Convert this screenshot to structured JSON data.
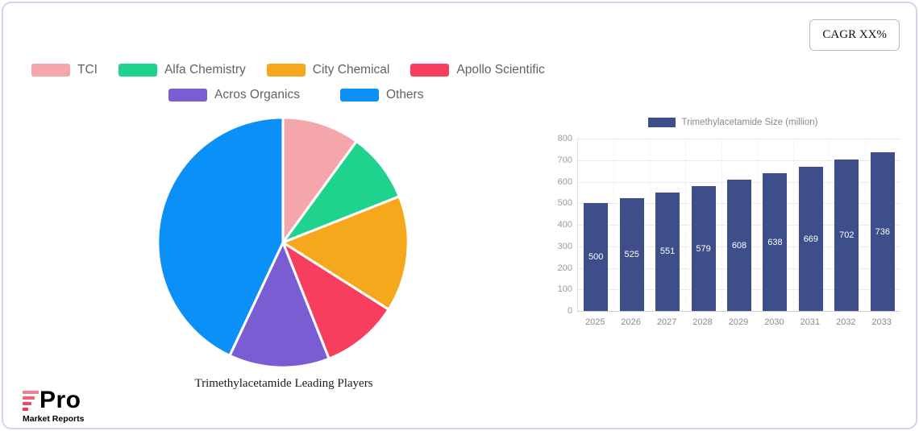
{
  "badge": {
    "label": "CAGR XX%"
  },
  "legend": {
    "items": [
      {
        "label": "TCI",
        "color": "#f4a6ab"
      },
      {
        "label": "Alfa Chemistry",
        "color": "#1fd38e"
      },
      {
        "label": "City Chemical",
        "color": "#f5a81c"
      },
      {
        "label": "Apollo Scientific",
        "color": "#f83e5f"
      },
      {
        "label": "Acros Organics",
        "color": "#7a5dd3"
      },
      {
        "label": "Others",
        "color": "#0b90f8"
      }
    ]
  },
  "pie_title": "Trimethylacetamide Leading Players",
  "bar_legend": "Trimethylacetamide Size (million)",
  "logo": {
    "name": "Pro",
    "subtitle": "Market Reports"
  },
  "chart_data": [
    {
      "type": "pie",
      "title": "Trimethylacetamide Leading Players",
      "categories": [
        "TCI",
        "Alfa Chemistry",
        "City Chemical",
        "Apollo Scientific",
        "Acros Organics",
        "Others"
      ],
      "values": [
        10,
        9,
        15,
        10,
        13,
        43
      ],
      "colors": [
        "#f4a6ab",
        "#1fd38e",
        "#f5a81c",
        "#f83e5f",
        "#7a5dd3",
        "#0b90f8"
      ],
      "legend_position": "top",
      "start_angle_deg": 0,
      "direction": "clockwise"
    },
    {
      "type": "bar",
      "title": "",
      "legend": [
        "Trimethylacetamide Size (million)"
      ],
      "categories": [
        "2025",
        "2026",
        "2027",
        "2028",
        "2029",
        "2030",
        "2031",
        "2032",
        "2033"
      ],
      "values": [
        500,
        525,
        551,
        579,
        608,
        638,
        669,
        702,
        736
      ],
      "bar_color": "#3d4e8a",
      "xlabel": "",
      "ylabel": "",
      "ylim": [
        0,
        800
      ],
      "yticks": [
        0,
        100,
        200,
        300,
        400,
        500,
        600,
        700,
        800
      ],
      "grid": true
    }
  ]
}
